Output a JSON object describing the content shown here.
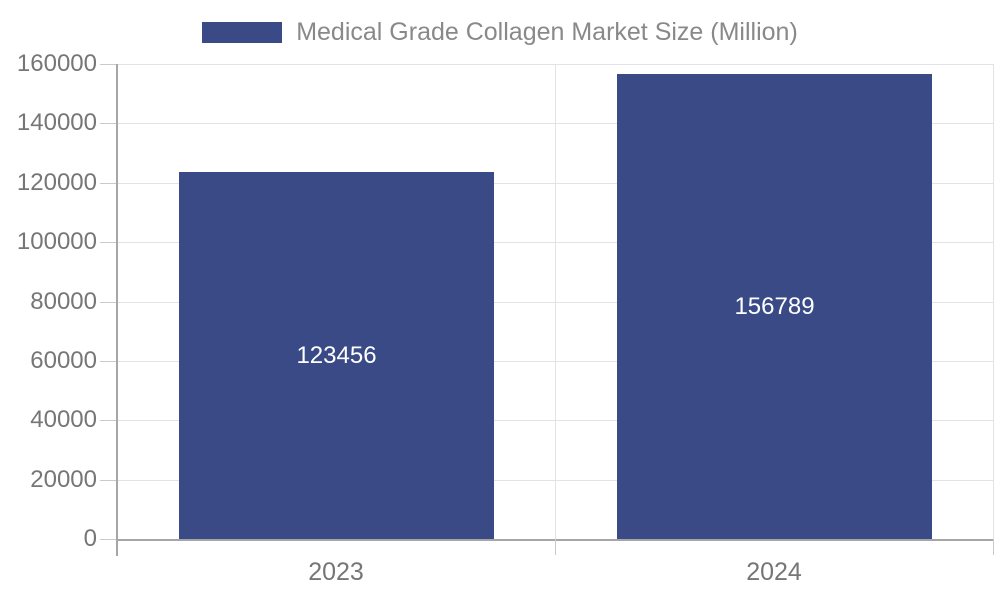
{
  "chart_data": {
    "type": "bar",
    "title": "",
    "legend": {
      "label": "Medical Grade Collagen Market Size (Million)",
      "position": "top"
    },
    "categories": [
      "2023",
      "2024"
    ],
    "series": [
      {
        "name": "Medical Grade Collagen Market Size (Million)",
        "values": [
          123456,
          156789
        ],
        "value_labels": [
          "123456",
          "156789"
        ]
      }
    ],
    "xlabel": "",
    "ylabel": "",
    "ylim": [
      0,
      160000
    ],
    "yticks": [
      0,
      20000,
      40000,
      60000,
      80000,
      100000,
      120000,
      140000,
      160000
    ],
    "grid": true,
    "colors": {
      "bar": "#3A4A86",
      "axis": "#a6a6a6",
      "gridline": "#e2e2e7",
      "tick_label": "#767676",
      "legend_text": "#898989",
      "value_label": "#ffffff",
      "background": "#ffffff"
    }
  }
}
